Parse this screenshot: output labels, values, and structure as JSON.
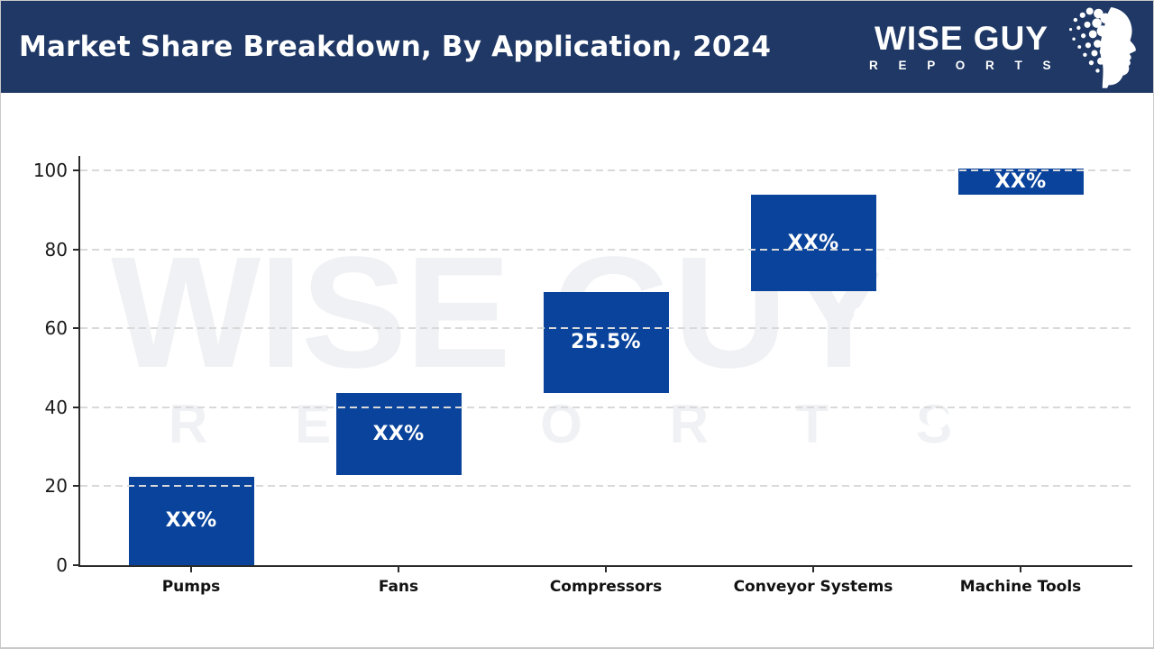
{
  "header": {
    "title": "Market Share Breakdown, By Application, 2024",
    "logo": {
      "line1": "WISE GUY",
      "line2": "R E P O R T S"
    }
  },
  "watermark": {
    "line1": "WISE GUY",
    "line2": "R E P O R T S"
  },
  "chart_data": {
    "type": "bar",
    "subtype": "waterfall-floating-bars",
    "title": "Market Share Breakdown, By Application, 2024",
    "xlabel": "",
    "ylabel": "",
    "categories": [
      "Pumps",
      "Fans",
      "Compressors",
      "Conveyor Systems",
      "Machine Tools"
    ],
    "segments": [
      {
        "category": "Pumps",
        "start": 0,
        "end": 22.4,
        "label": "XX%"
      },
      {
        "category": "Fans",
        "start": 22.9,
        "end": 43.6,
        "label": "XX%"
      },
      {
        "category": "Compressors",
        "start": 43.6,
        "end": 69.2,
        "label": "25.5%"
      },
      {
        "category": "Conveyor Systems",
        "start": 69.4,
        "end": 93.8,
        "label": "XX%"
      },
      {
        "category": "Machine Tools",
        "start": 93.9,
        "end": 100.4,
        "label": "XX%"
      }
    ],
    "yticks": [
      0,
      20,
      40,
      60,
      80,
      100
    ],
    "ylim": [
      0,
      103.5
    ],
    "grid": "horizontal-dashed",
    "legend": "none",
    "bar_color": "#09439B",
    "bar_label_color": "#ffffff"
  },
  "colors": {
    "header_bg": "#1F3865",
    "title_text": "#ffffff",
    "bar": "#09439B",
    "gridline": "#d9d9d9",
    "axis": "#2b2b2b",
    "tick_text": "#1a1a1a",
    "watermark": "#f0f1f4",
    "page_border": "#c9c9c9"
  }
}
